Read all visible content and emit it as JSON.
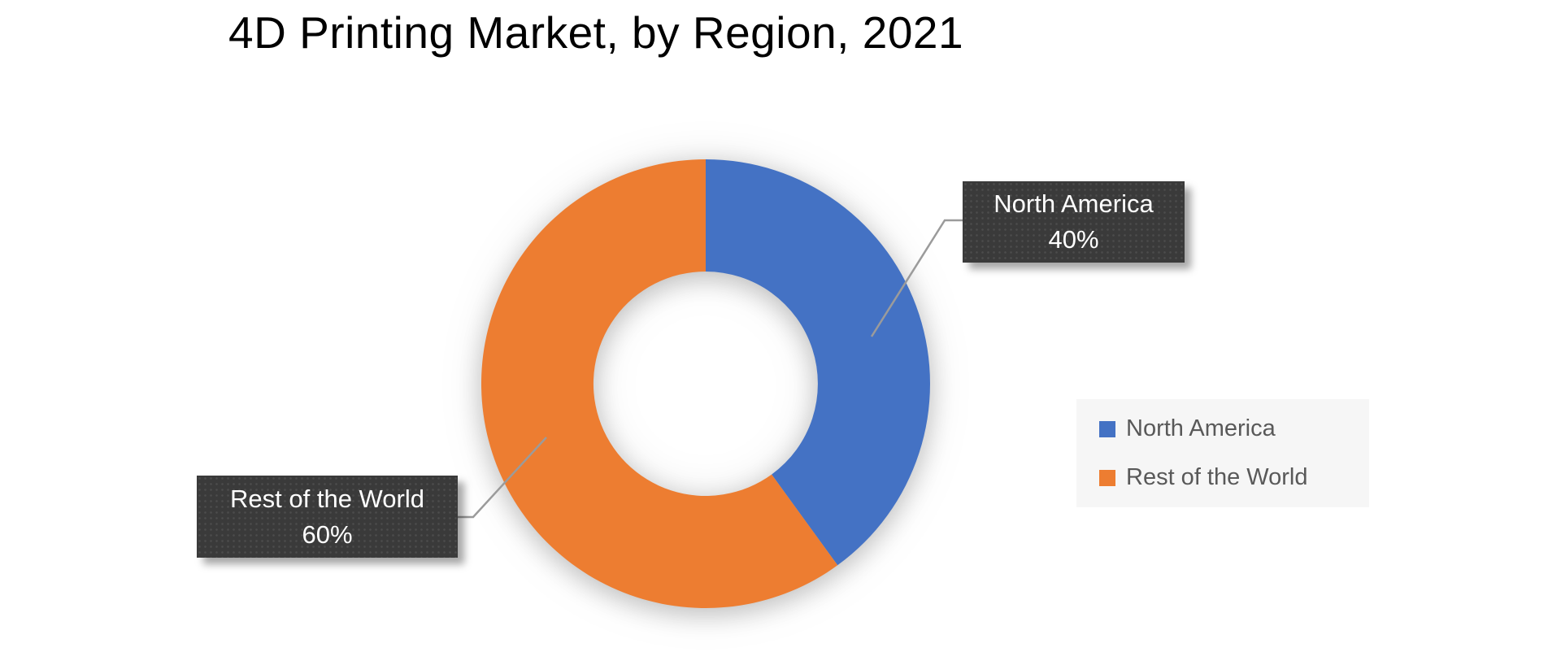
{
  "title": "4D Printing Market, by Region, 2021",
  "chart_data": {
    "type": "pie",
    "subtype": "donut",
    "title": "4D Printing Market, by Region, 2021",
    "categories": [
      "North America",
      "Rest of the World"
    ],
    "values": [
      40,
      60
    ],
    "unit": "%",
    "colors": [
      "#4472c4",
      "#ed7d31"
    ],
    "start_angle_deg_from_top": 0,
    "direction": "clockwise",
    "inner_radius_ratio": 0.5,
    "legend_position": "right",
    "data_labels": [
      {
        "label": "North America",
        "value_text": "40%"
      },
      {
        "label": "Rest of the World",
        "value_text": "60%"
      }
    ]
  },
  "callouts": {
    "north_america": {
      "line1": "North America",
      "line2": "40%"
    },
    "rest_of_world": {
      "line1": "Rest of the World",
      "line2": "60%"
    }
  },
  "legend": {
    "items": [
      {
        "label": "North America",
        "color": "#4472c4"
      },
      {
        "label": "Rest of the World",
        "color": "#ed7d31"
      }
    ]
  },
  "style": {
    "title_color": "#000000",
    "label_box_bg": "#3a3a3a",
    "label_text_color": "#ffffff",
    "leader_line_color": "#9b9b9b",
    "legend_bg": "#f6f6f6",
    "legend_text_color": "#595959",
    "background": "#ffffff"
  }
}
